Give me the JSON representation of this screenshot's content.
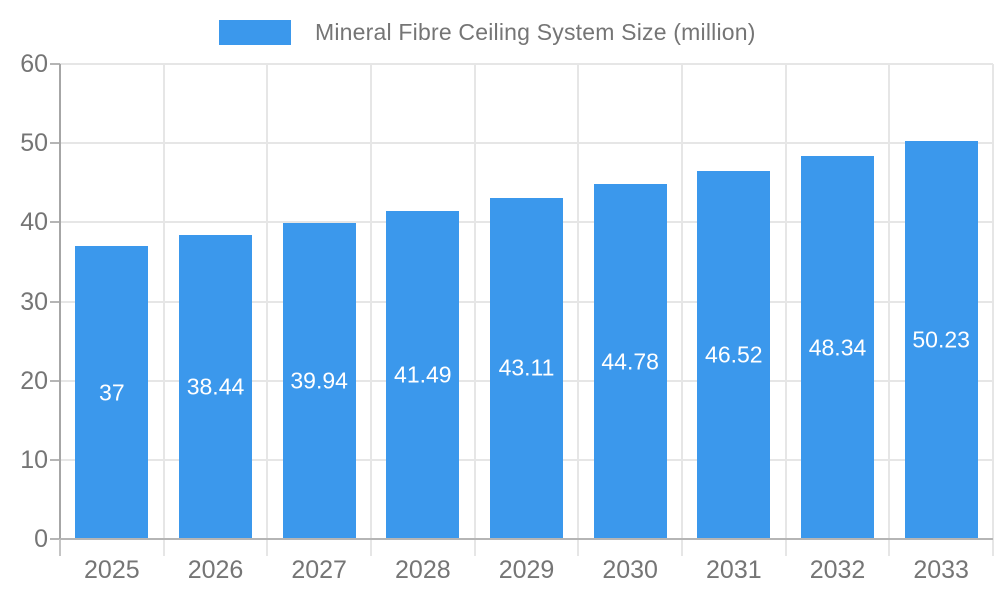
{
  "legend": {
    "label": "Mineral Fibre Ceiling System Size (million)"
  },
  "chart_data": {
    "type": "bar",
    "title": "Mineral Fibre Ceiling System Size (million)",
    "series_name": "Mineral Fibre Ceiling System Size (million)",
    "categories": [
      "2025",
      "2026",
      "2027",
      "2028",
      "2029",
      "2030",
      "2031",
      "2032",
      "2033"
    ],
    "values": [
      37,
      38.44,
      39.94,
      41.49,
      43.11,
      44.78,
      46.52,
      48.34,
      50.23
    ],
    "value_labels": [
      "37",
      "38.44",
      "39.94",
      "41.49",
      "43.11",
      "44.78",
      "46.52",
      "48.34",
      "50.23"
    ],
    "xlabel": "",
    "ylabel": "",
    "ylim": [
      0,
      60
    ],
    "yticks": [
      0,
      10,
      20,
      30,
      40,
      50,
      60
    ],
    "grid": true,
    "legend_position": "top",
    "bar_labels": "inside-middle-white"
  },
  "colors": {
    "bar": "#3b98ec",
    "text": "#757575",
    "bar_label_text": "#ffffff",
    "gridline": "#e6e6e6",
    "baseline": "#b5b5b5",
    "y_axis_line": "#a6a6a6",
    "background": "#ffffff"
  }
}
